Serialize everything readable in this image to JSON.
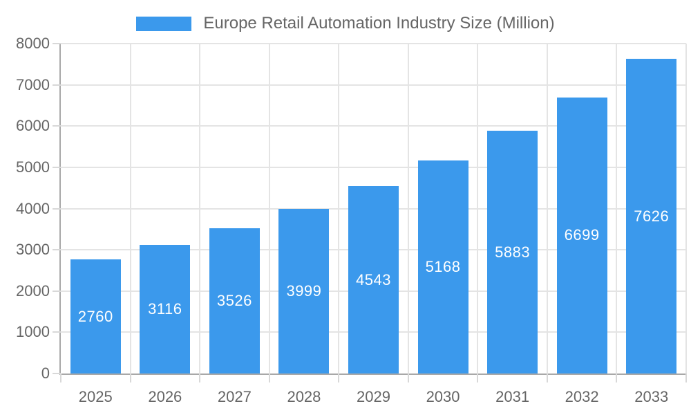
{
  "legend": {
    "label": "Europe Retail Automation Industry Size (Million)"
  },
  "chart_data": {
    "type": "bar",
    "title": "Europe Retail Automation Industry Size (Million)",
    "categories": [
      "2025",
      "2026",
      "2027",
      "2028",
      "2029",
      "2030",
      "2031",
      "2032",
      "2033"
    ],
    "values": [
      2760,
      3116,
      3526,
      3999,
      4543,
      5168,
      5883,
      6699,
      7626
    ],
    "xlabel": "",
    "ylabel": "",
    "ylim": [
      0,
      8000
    ],
    "ytick_step": 1000,
    "grid": true,
    "legend_position": "top",
    "value_labels": "inside-center",
    "colors": {
      "bar": "#3B99EC",
      "value_label": "#FFFFFF",
      "axis_text": "#666666",
      "grid_line": "#E4E4E4",
      "axis_line": "#A8A8A8",
      "tick_mark": "#D8D8D8",
      "background": "#FFFFFF"
    }
  }
}
